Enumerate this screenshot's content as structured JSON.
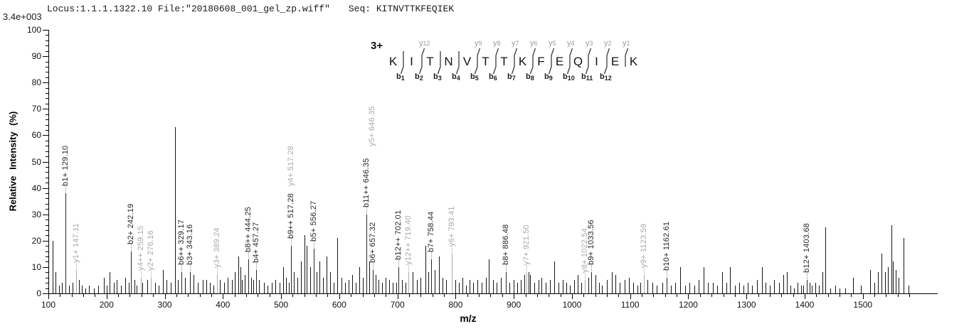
{
  "header": {
    "locus_file": "Locus:1.1.1.1322.10 File:\"20180608_001_gel_zp.wiff\"",
    "seq": "Seq: KITNVTTKFEQIEK",
    "max_intensity": "3.4e+003"
  },
  "axes": {
    "x_label": "m/z",
    "y_label": "Relative Intensity (%)"
  },
  "peptide": {
    "charge": "3+",
    "residues": [
      "K",
      "I",
      "T",
      "N",
      "V",
      "T",
      "T",
      "K",
      "F",
      "E",
      "Q",
      "I",
      "E",
      "K"
    ],
    "cleavages": [
      {
        "bn": "1"
      },
      {
        "bn": "2",
        "yn": "12"
      },
      {
        "bn": "3"
      },
      {
        "bn": "4"
      },
      {
        "bn": "5",
        "yn": "9"
      },
      {
        "bn": "6",
        "yn": "8"
      },
      {
        "bn": "7",
        "yn": "7"
      },
      {
        "bn": "8",
        "yn": "6"
      },
      {
        "bn": "9",
        "yn": "5"
      },
      {
        "bn": "10",
        "yn": "4"
      },
      {
        "bn": "11",
        "yn": "3"
      },
      {
        "bn": "12",
        "yn": "2"
      },
      {
        "yn": "1"
      }
    ]
  },
  "chart_data": {
    "type": "bar",
    "variant": "ms2-centroid-spectrum",
    "title": "",
    "xlabel": "m/z",
    "ylabel": "Relative Intensity (%)",
    "x_range": [
      100,
      1625
    ],
    "y_range": [
      0,
      100
    ],
    "x_major_tick": 100,
    "x_minor_tick": 20,
    "x_last_labeled_tick": 1500,
    "x_tick_end": 1580,
    "y_major_tick": 10,
    "y_minor_tick": 2,
    "grid": false,
    "base_peak_intensity": "3.4e+003",
    "precursor_charge": "3+",
    "colors": {
      "b_ion": "#262626",
      "y_ion": "#a9a9a9",
      "peak": "#151515"
    },
    "annotated_peaks": [
      {
        "mz": 129.1,
        "pct": 38,
        "ion": "b",
        "label": "b1+ 129.10"
      },
      {
        "mz": 147.11,
        "pct": 9,
        "ion": "y",
        "label": "y1+ 147.11"
      },
      {
        "mz": 242.19,
        "pct": 16,
        "ion": "b",
        "label": "b2+ 242.19"
      },
      {
        "mz": 259.15,
        "pct": 6,
        "ion": "y",
        "label": "y4++ 259.15"
      },
      {
        "mz": 276.16,
        "pct": 6,
        "ion": "y",
        "label": "y2+ 276.16"
      },
      {
        "mz": 329.17,
        "pct": 8,
        "ion": "b",
        "label": "b6++ 329.17"
      },
      {
        "mz": 343.16,
        "pct": 8,
        "ion": "b",
        "label": "b3+ 343.16"
      },
      {
        "mz": 389.24,
        "pct": 7,
        "ion": "y",
        "label": "y3+ 389.24"
      },
      {
        "mz": 444.25,
        "pct": 13,
        "ion": "b",
        "label": "b8++ 444.25"
      },
      {
        "mz": 457.27,
        "pct": 9,
        "ion": "b",
        "label": "b4+ 457.27"
      },
      {
        "mz": 517.28,
        "pct": 18,
        "ion": "b",
        "label": "b9++ 517.28"
      },
      {
        "mz": 517.28,
        "pct": 18,
        "ion": "y",
        "label": "y4+ 517.28",
        "stack": true,
        "raise": 74
      },
      {
        "mz": 556.27,
        "pct": 17,
        "ion": "b",
        "label": "b5+ 556.27"
      },
      {
        "mz": 646.35,
        "pct": 30,
        "ion": "b",
        "label": "b11++ 646.35"
      },
      {
        "mz": 646.35,
        "pct": 30,
        "ion": "y",
        "label": "y5+ 646.35",
        "stack": true,
        "raise": 86,
        "dx": 8
      },
      {
        "mz": 657.32,
        "pct": 9,
        "ion": "b",
        "label": "b6+ 657.32"
      },
      {
        "mz": 702.01,
        "pct": 10,
        "ion": "b",
        "label": "b12++ 702.01"
      },
      {
        "mz": 719.4,
        "pct": 8,
        "ion": "y",
        "label": "y12++ 719.40"
      },
      {
        "mz": 758.44,
        "pct": 13,
        "ion": "b",
        "label": "b7+ 758.44"
      },
      {
        "mz": 793.41,
        "pct": 15,
        "ion": "y",
        "label": "y6+ 793.41"
      },
      {
        "mz": 886.48,
        "pct": 8,
        "ion": "b",
        "label": "b8+ 886.48"
      },
      {
        "mz": 921.5,
        "pct": 8,
        "ion": "y",
        "label": "y7+ 921.50"
      },
      {
        "mz": 1022.54,
        "pct": 5,
        "ion": "y",
        "label": "y8+ 1022.54"
      },
      {
        "mz": 1033.56,
        "pct": 8,
        "ion": "b",
        "label": "b9+ 1033.56"
      },
      {
        "mz": 1123.59,
        "pct": 7,
        "ion": "y",
        "label": "y9+ 1123.59"
      },
      {
        "mz": 1162.61,
        "pct": 6,
        "ion": "b",
        "label": "b10+ 1162.61"
      },
      {
        "mz": 1403.68,
        "pct": 5,
        "ion": "b",
        "label": "b12+ 1403.68"
      }
    ],
    "unannotated_peaks": [
      [
        107,
        20
      ],
      [
        112,
        8
      ],
      [
        118,
        3
      ],
      [
        123,
        4
      ],
      [
        135,
        3
      ],
      [
        141,
        4
      ],
      [
        152,
        5
      ],
      [
        158,
        3
      ],
      [
        164,
        2
      ],
      [
        170,
        3
      ],
      [
        178,
        2
      ],
      [
        186,
        3
      ],
      [
        195,
        6
      ],
      [
        200,
        3
      ],
      [
        205,
        8
      ],
      [
        212,
        4
      ],
      [
        218,
        5
      ],
      [
        225,
        3
      ],
      [
        232,
        6
      ],
      [
        238,
        4
      ],
      [
        248,
        5
      ],
      [
        252,
        3
      ],
      [
        262,
        4
      ],
      [
        270,
        5
      ],
      [
        283,
        4
      ],
      [
        290,
        3
      ],
      [
        297,
        9
      ],
      [
        303,
        5
      ],
      [
        310,
        4
      ],
      [
        318,
        63
      ],
      [
        323,
        5
      ],
      [
        335,
        6
      ],
      [
        350,
        7
      ],
      [
        357,
        4
      ],
      [
        365,
        5
      ],
      [
        372,
        5
      ],
      [
        378,
        4
      ],
      [
        384,
        3
      ],
      [
        395,
        5
      ],
      [
        402,
        4
      ],
      [
        408,
        6
      ],
      [
        415,
        5
      ],
      [
        420,
        8
      ],
      [
        426,
        14
      ],
      [
        430,
        10
      ],
      [
        433,
        5
      ],
      [
        438,
        7
      ],
      [
        448,
        6
      ],
      [
        452,
        5
      ],
      [
        462,
        5
      ],
      [
        470,
        4
      ],
      [
        477,
        3
      ],
      [
        484,
        4
      ],
      [
        490,
        5
      ],
      [
        497,
        4
      ],
      [
        503,
        10
      ],
      [
        509,
        6
      ],
      [
        513,
        4
      ],
      [
        522,
        8
      ],
      [
        528,
        6
      ],
      [
        534,
        12
      ],
      [
        540,
        22
      ],
      [
        544,
        18
      ],
      [
        550,
        10
      ],
      [
        561,
        8
      ],
      [
        566,
        12
      ],
      [
        572,
        6
      ],
      [
        578,
        14
      ],
      [
        584,
        8
      ],
      [
        590,
        4
      ],
      [
        597,
        21
      ],
      [
        604,
        6
      ],
      [
        610,
        4
      ],
      [
        616,
        5
      ],
      [
        622,
        7
      ],
      [
        628,
        4
      ],
      [
        634,
        10
      ],
      [
        640,
        6
      ],
      [
        652,
        12
      ],
      [
        663,
        7
      ],
      [
        668,
        5
      ],
      [
        674,
        4
      ],
      [
        680,
        6
      ],
      [
        686,
        5
      ],
      [
        692,
        4
      ],
      [
        698,
        4
      ],
      [
        708,
        5
      ],
      [
        714,
        4
      ],
      [
        726,
        8
      ],
      [
        733,
        5
      ],
      [
        740,
        6
      ],
      [
        748,
        18
      ],
      [
        753,
        8
      ],
      [
        764,
        9
      ],
      [
        771,
        14
      ],
      [
        777,
        6
      ],
      [
        784,
        5
      ],
      [
        800,
        5
      ],
      [
        806,
        4
      ],
      [
        812,
        6
      ],
      [
        818,
        3
      ],
      [
        824,
        5
      ],
      [
        830,
        4
      ],
      [
        838,
        5
      ],
      [
        845,
        4
      ],
      [
        852,
        6
      ],
      [
        857,
        13
      ],
      [
        864,
        5
      ],
      [
        870,
        4
      ],
      [
        878,
        6
      ],
      [
        893,
        4
      ],
      [
        900,
        5
      ],
      [
        906,
        4
      ],
      [
        912,
        5
      ],
      [
        918,
        7
      ],
      [
        925,
        8
      ],
      [
        928,
        7
      ],
      [
        935,
        4
      ],
      [
        942,
        5
      ],
      [
        948,
        6
      ],
      [
        955,
        4
      ],
      [
        962,
        5
      ],
      [
        970,
        12
      ],
      [
        977,
        4
      ],
      [
        984,
        5
      ],
      [
        990,
        4
      ],
      [
        997,
        3
      ],
      [
        1004,
        5
      ],
      [
        1010,
        7
      ],
      [
        1016,
        4
      ],
      [
        1028,
        6
      ],
      [
        1040,
        7
      ],
      [
        1046,
        4
      ],
      [
        1052,
        3
      ],
      [
        1060,
        5
      ],
      [
        1068,
        8
      ],
      [
        1075,
        7
      ],
      [
        1082,
        4
      ],
      [
        1090,
        5
      ],
      [
        1098,
        6
      ],
      [
        1105,
        4
      ],
      [
        1112,
        3
      ],
      [
        1118,
        4
      ],
      [
        1130,
        5
      ],
      [
        1138,
        4
      ],
      [
        1146,
        3
      ],
      [
        1155,
        4
      ],
      [
        1170,
        3
      ],
      [
        1178,
        4
      ],
      [
        1186,
        10
      ],
      [
        1194,
        3
      ],
      [
        1202,
        4
      ],
      [
        1210,
        3
      ],
      [
        1218,
        5
      ],
      [
        1226,
        10
      ],
      [
        1234,
        4
      ],
      [
        1242,
        4
      ],
      [
        1250,
        3
      ],
      [
        1258,
        8
      ],
      [
        1265,
        4
      ],
      [
        1272,
        10
      ],
      [
        1280,
        3
      ],
      [
        1288,
        4
      ],
      [
        1295,
        3
      ],
      [
        1302,
        4
      ],
      [
        1310,
        3
      ],
      [
        1318,
        5
      ],
      [
        1326,
        10
      ],
      [
        1333,
        4
      ],
      [
        1340,
        3
      ],
      [
        1348,
        5
      ],
      [
        1356,
        4
      ],
      [
        1363,
        7
      ],
      [
        1370,
        8
      ],
      [
        1376,
        3
      ],
      [
        1382,
        2
      ],
      [
        1388,
        4
      ],
      [
        1394,
        3
      ],
      [
        1398,
        3
      ],
      [
        1408,
        4
      ],
      [
        1412,
        3
      ],
      [
        1418,
        4
      ],
      [
        1424,
        3
      ],
      [
        1430,
        8
      ],
      [
        1436,
        25
      ],
      [
        1444,
        2
      ],
      [
        1452,
        3
      ],
      [
        1460,
        2
      ],
      [
        1470,
        2
      ],
      [
        1483,
        6
      ],
      [
        1497,
        3
      ],
      [
        1512,
        9
      ],
      [
        1520,
        4
      ],
      [
        1526,
        8
      ],
      [
        1532,
        15
      ],
      [
        1538,
        8
      ],
      [
        1543,
        10
      ],
      [
        1549,
        26
      ],
      [
        1552,
        12
      ],
      [
        1556,
        9
      ],
      [
        1562,
        6
      ],
      [
        1570,
        21
      ],
      [
        1578,
        3
      ]
    ]
  }
}
